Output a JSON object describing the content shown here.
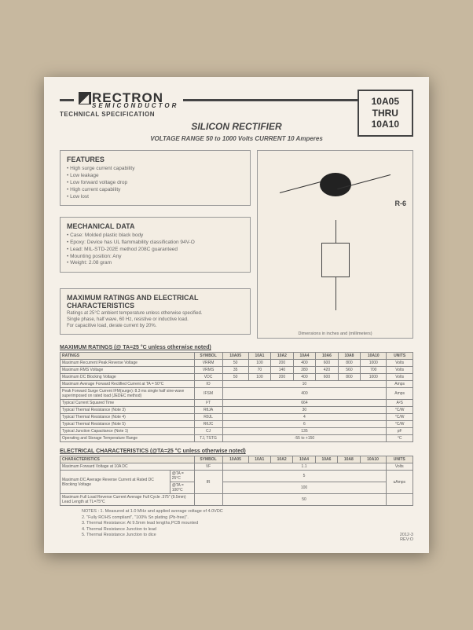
{
  "header": {
    "logo_main": "RECTRON",
    "logo_sub": "SEMICONDUCTOR",
    "tech_spec": "TECHNICAL SPECIFICATION",
    "part_top": "10A05",
    "part_mid": "THRU",
    "part_bot": "10A10",
    "title": "SILICON RECTIFIER",
    "subtitle": "VOLTAGE RANGE 50 to 1000 Volts  CURRENT 10 Amperes"
  },
  "features": {
    "title": "FEATURES",
    "items": [
      "High surge current capability",
      "Low leakage",
      "Low forward voltage drop",
      "High current capability",
      "Low lost"
    ]
  },
  "mech": {
    "title": "MECHANICAL DATA",
    "items": [
      "Case: Molded plastic black body",
      "Epoxy: Device has UL flammability classification 94V-O",
      "Lead: MIL-STD-202E method 208C guaranteed",
      "Mounting position: Any",
      "Weight: 2.08 gram"
    ]
  },
  "figure": {
    "r6": "R-6",
    "dim_caption": "Dimensions in inches and (millimeters)"
  },
  "max_box": {
    "title": "MAXIMUM RATINGS AND ELECTRICAL CHARACTERISTICS",
    "lines": [
      "Ratings at 25°C ambient temperature unless otherwise specified.",
      "Single phase, half wave, 60 Hz, resistive or inductive load.",
      "For capacitive load, derate current by 20%."
    ]
  },
  "max_ratings": {
    "title": "MAXIMUM RATINGS (@ TA=25 °C unless otherwise noted)",
    "head": [
      "RATINGS",
      "SYMBOL",
      "10A05",
      "10A1",
      "10A2",
      "10A4",
      "10A6",
      "10A8",
      "10A10",
      "UNITS"
    ],
    "rows": [
      [
        "Maximum Recurrent Peak Reverse Voltage",
        "VRRM",
        "50",
        "100",
        "200",
        "400",
        "600",
        "800",
        "1000",
        "Volts"
      ],
      [
        "Maximum RMS Voltage",
        "VRMS",
        "35",
        "70",
        "140",
        "280",
        "420",
        "560",
        "700",
        "Volts"
      ],
      [
        "Maximum DC Blocking Voltage",
        "VDC",
        "50",
        "100",
        "200",
        "400",
        "600",
        "800",
        "1000",
        "Volts"
      ],
      [
        "Maximum Average Forward Rectified Current at TA = 50°C",
        "IO",
        "",
        "",
        "",
        "10",
        "",
        "",
        "",
        "Amps"
      ],
      [
        "Peak Forward Surge Current IFM(surge): 8.3 ms single half sine-wave superimposed on rated load (JEDEC method)",
        "IFSM",
        "",
        "",
        "",
        "400",
        "",
        "",
        "",
        "Amps"
      ],
      [
        "Typical Current Squared Time",
        "I²T",
        "",
        "",
        "",
        "664",
        "",
        "",
        "",
        "A²S"
      ],
      [
        "Typical Thermal Resistance (Note 3)",
        "RθJA",
        "",
        "",
        "",
        "30",
        "",
        "",
        "",
        "°C/W"
      ],
      [
        "Typical Thermal Resistance (Note 4)",
        "RθJL",
        "",
        "",
        "",
        "4",
        "",
        "",
        "",
        "°C/W"
      ],
      [
        "Typical Thermal Resistance (Note 5)",
        "RθJC",
        "",
        "",
        "",
        "6",
        "",
        "",
        "",
        "°C/W"
      ],
      [
        "Typical Junction Capacitance (Note 1)",
        "CJ",
        "",
        "",
        "",
        "135",
        "",
        "",
        "",
        "pF"
      ],
      [
        "Operating and Storage Temperature Range",
        "TJ, TSTG",
        "",
        "",
        "",
        "-55 to +150",
        "",
        "",
        "",
        "°C"
      ]
    ]
  },
  "elec": {
    "title": "ELECTRICAL CHARACTERISTICS (@TA=25 °C unless otherwise noted)",
    "head": [
      "CHARACTERISTICS",
      "SYMBOL",
      "10A05",
      "10A1",
      "10A2",
      "10A4",
      "10A6",
      "10A8",
      "10A10",
      "UNITS"
    ],
    "rows": [
      [
        "Maximum Forward Voltage at 10A DC",
        "",
        "VF",
        "",
        "",
        "",
        "1.1",
        "",
        "",
        "",
        "Volts"
      ],
      [
        "Maximum DC Average Reverse Current at Rated DC Blocking Voltage",
        "@TA = 25°C",
        "IR",
        "",
        "",
        "",
        "5",
        "",
        "",
        "",
        "uAmps"
      ],
      [
        "",
        "@TA = 100°C",
        "",
        "",
        "",
        "",
        "100",
        "",
        "",
        "",
        ""
      ],
      [
        "Maximum Full Load Reverse Current Average Full Cycle .375\" (9.5mm) Lead Length at TL=75°C",
        "",
        "",
        "",
        "",
        "",
        "50",
        "",
        "",
        "",
        ""
      ]
    ]
  },
  "notes": {
    "label": "NOTES :",
    "items": [
      "1. Measured at 1.0 MHz and applied average voltage of 4.0VDC",
      "2. \"Fully ROHS compliant\", \"100% Sn plating (Pb-free)\".",
      "3. Thermal Resistance: At 9.5mm lead lengths,PCB mounted",
      "4. Thermal Resistance Junction to lead",
      "5. Thermal Resistance Junction to dice"
    ]
  },
  "rev": {
    "date": "2012-3",
    "rev": "REV:O"
  }
}
